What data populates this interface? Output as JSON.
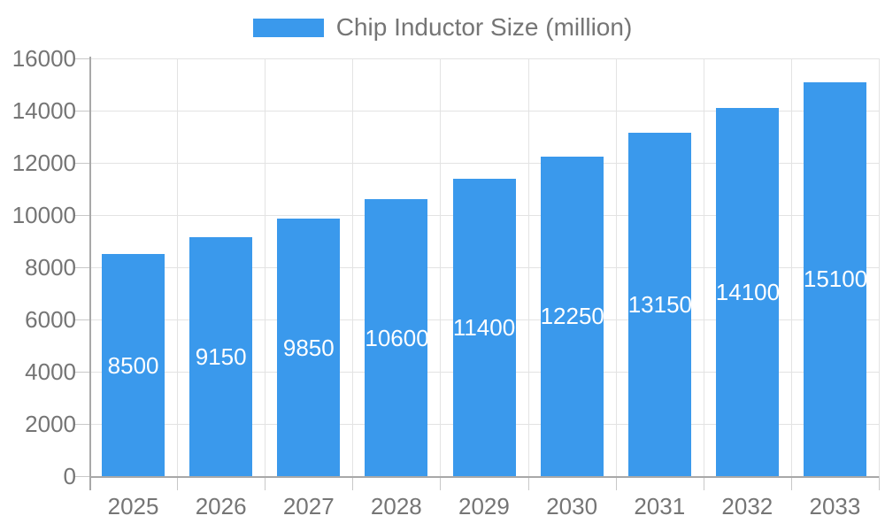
{
  "legend": {
    "label": "Chip Inductor Size (million)"
  },
  "chart_data": {
    "type": "bar",
    "title": "Chip Inductor Size (million)",
    "categories": [
      "2025",
      "2026",
      "2027",
      "2028",
      "2029",
      "2030",
      "2031",
      "2032",
      "2033"
    ],
    "series": [
      {
        "name": "Chip Inductor Size (million)",
        "values": [
          8500,
          9150,
          9850,
          10600,
          11400,
          12250,
          13150,
          14100,
          15100
        ]
      }
    ],
    "value_labels_visible": true,
    "value_label_position": "center",
    "xlabel": "",
    "ylabel": "",
    "ylim": [
      0,
      16000
    ],
    "yticks": [
      0,
      2000,
      4000,
      6000,
      8000,
      10000,
      12000,
      14000,
      16000
    ],
    "grid": true,
    "legend_position": "top",
    "colors": {
      "bar": "#3A99EC",
      "axis_text": "#757575",
      "value_label": "#ffffff",
      "gridline": "#e3e3e3",
      "axis_line": "#a8a8a8",
      "tick": "#c8c8c8",
      "background": "#ffffff"
    }
  }
}
